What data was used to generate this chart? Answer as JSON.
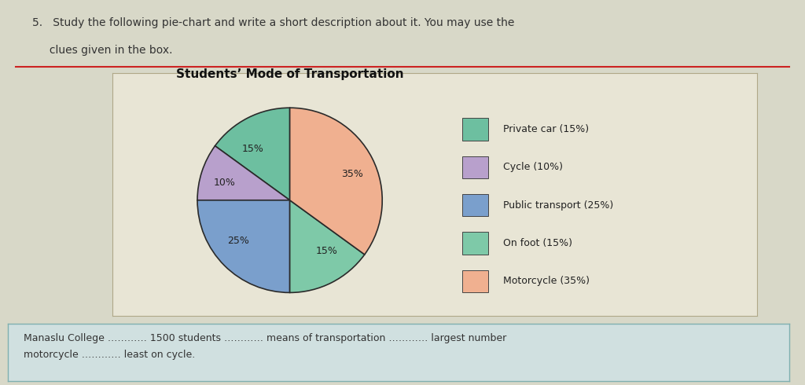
{
  "title": "Students’ Mode of Transportation",
  "slices": [
    15,
    10,
    25,
    15,
    35
  ],
  "slice_labels": [
    "15%",
    "10%",
    "25%",
    "15%",
    "35%"
  ],
  "colors": [
    "#6dbfa0",
    "#b8a0cc",
    "#7a9fcc",
    "#7ec9a8",
    "#f0b090"
  ],
  "legend_labels": [
    "Private car (15%)",
    "Cycle (10%)",
    "Public transport (25%)",
    "On foot (15%)",
    "Motorcycle (35%)"
  ],
  "legend_colors": [
    "#6dbfa0",
    "#b8a0cc",
    "#7a9fcc",
    "#7ec9a8",
    "#f0b090"
  ],
  "header_line1": "5.   Study the following pie-chart and write a short description about it. You may use the",
  "header_line2": "     clues given in the box.",
  "footer_text": "Manaslu College ………… 1500 students ………… means of transportation ………… largest number\nmotorcycle ………… least on cycle.",
  "bg_color": "#d8d8c8",
  "chart_box_color": "#e8e5d5",
  "chart_box_edge": "#b0a888",
  "footer_bg": "#d0e0e0",
  "footer_edge": "#80b0b0",
  "header_text_color": "#333333",
  "red_line_color": "#cc2222",
  "startangle": 90,
  "title_fontsize": 11,
  "label_fontsize": 9,
  "legend_fontsize": 9,
  "header_fontsize": 10,
  "footer_fontsize": 9
}
